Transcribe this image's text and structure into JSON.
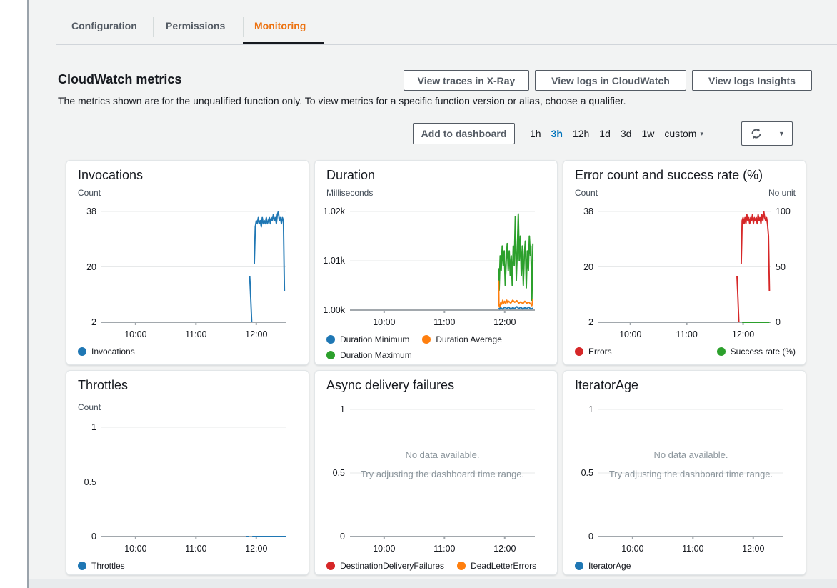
{
  "tabs": [
    {
      "label": "Configuration",
      "active": false
    },
    {
      "label": "Permissions",
      "active": false
    },
    {
      "label": "Monitoring",
      "active": true
    }
  ],
  "header": {
    "title": "CloudWatch metrics",
    "description": "The metrics shown are for the unqualified function only. To view metrics for a specific function version or alias, choose a qualifier.",
    "actions": [
      "View traces in X-Ray",
      "View logs in CloudWatch",
      "View logs Insights"
    ]
  },
  "toolbar": {
    "add_to_dashboard": "Add to dashboard",
    "ranges": [
      "1h",
      "3h",
      "12h",
      "1d",
      "3d",
      "1w",
      "custom"
    ],
    "active_range": "3h"
  },
  "colors": {
    "accent": "#ec7211",
    "link": "#0073bb",
    "series_blue": "#1f77b4",
    "series_orange": "#ff7f0e",
    "series_green": "#2ca02c",
    "series_red": "#d62728"
  },
  "chart_data": [
    {
      "id": "invocations",
      "type": "line",
      "title": "Invocations",
      "unit": "Count",
      "x_domain": [
        566,
        750
      ],
      "x_ticks": [
        {
          "v": 600,
          "label": "10:00"
        },
        {
          "v": 660,
          "label": "11:00"
        },
        {
          "v": 720,
          "label": "12:00"
        }
      ],
      "y_domain": [
        2,
        38
      ],
      "y_ticks": [
        {
          "v": 38,
          "label": "38"
        },
        {
          "v": 20,
          "label": "20"
        },
        {
          "v": 2,
          "label": "2"
        }
      ],
      "series": [
        {
          "name": "Invocations",
          "color": "#1f77b4",
          "segments": [
            [
              [
                713.5,
                17
              ],
              [
                714.5,
                10
              ],
              [
                715.5,
                2
              ]
            ],
            [
              [
                718,
                21
              ],
              [
                718.5,
                27
              ],
              [
                719,
                33
              ],
              [
                720,
                35
              ],
              [
                721,
                34
              ],
              [
                722,
                36
              ],
              [
                723,
                34
              ],
              [
                724,
                35
              ],
              [
                725,
                33
              ],
              [
                726,
                36
              ],
              [
                727,
                34
              ],
              [
                728,
                35
              ],
              [
                729,
                34
              ],
              [
                730,
                36
              ],
              [
                731,
                34
              ],
              [
                732,
                35
              ],
              [
                733,
                36
              ],
              [
                734,
                34
              ],
              [
                735,
                36
              ],
              [
                736,
                35
              ],
              [
                737,
                37
              ],
              [
                738,
                35
              ],
              [
                739,
                36
              ],
              [
                740,
                34
              ],
              [
                741,
                37
              ],
              [
                742,
                38
              ],
              [
                743,
                35
              ],
              [
                744,
                36
              ],
              [
                745,
                34
              ],
              [
                746,
                36
              ],
              [
                747,
                35
              ],
              [
                748,
                12
              ]
            ]
          ]
        }
      ],
      "legend": [
        {
          "label": "Invocations",
          "color": "#1f77b4",
          "row": 0
        }
      ]
    },
    {
      "id": "duration",
      "type": "line",
      "title": "Duration",
      "unit": "Milliseconds",
      "x_domain": [
        566,
        750
      ],
      "x_ticks": [
        {
          "v": 600,
          "label": "10:00"
        },
        {
          "v": 660,
          "label": "11:00"
        },
        {
          "v": 720,
          "label": "12:00"
        }
      ],
      "y_domain": [
        1000,
        1020
      ],
      "y_ticks": [
        {
          "v": 1020,
          "label": "1.02k"
        },
        {
          "v": 1010,
          "label": "1.01k"
        },
        {
          "v": 1000,
          "label": "1.00k"
        }
      ],
      "series": [
        {
          "name": "Duration Maximum",
          "color": "#2ca02c",
          "segments": [
            [
              [
                714,
                1008.5
              ],
              [
                714.5,
                1004
              ],
              [
                715.5,
                1011
              ],
              [
                716.5,
                1008
              ],
              [
                717.5,
                1013
              ],
              [
                718.5,
                1009
              ],
              [
                719.5,
                1012
              ],
              [
                720.5,
                1005
              ],
              [
                721.5,
                1010
              ],
              [
                722.5,
                1013.5
              ],
              [
                723.5,
                1008
              ],
              [
                724.5,
                1012
              ],
              [
                725.5,
                1007
              ],
              [
                726.5,
                1011
              ],
              [
                727.5,
                1005
              ],
              [
                728.5,
                1013
              ],
              [
                729.5,
                1009
              ],
              [
                730.5,
                1019
              ],
              [
                731.5,
                1006
              ],
              [
                732.5,
                1012
              ],
              [
                733.5,
                1019.5
              ],
              [
                734.5,
                1010
              ],
              [
                735.5,
                1015
              ],
              [
                736.5,
                1007
              ],
              [
                737.5,
                1013
              ],
              [
                738.5,
                1005
              ],
              [
                739.5,
                1011
              ],
              [
                740.5,
                1014
              ],
              [
                741.5,
                1004.5
              ],
              [
                742.5,
                1012
              ],
              [
                743.5,
                1008
              ],
              [
                744.5,
                1015
              ],
              [
                745.5,
                1011
              ],
              [
                746,
                1013
              ],
              [
                747,
                1002
              ],
              [
                748,
                1013.5
              ]
            ]
          ]
        },
        {
          "name": "Duration Average",
          "color": "#ff7f0e",
          "segments": [
            [
              [
                714,
                1006
              ],
              [
                714.3,
                1001
              ],
              [
                715,
                1000.6
              ],
              [
                716,
                1001.5
              ],
              [
                717,
                1001.2
              ],
              [
                718,
                1002
              ],
              [
                719,
                1001.4
              ],
              [
                720,
                1001.8
              ],
              [
                721,
                1001.3
              ],
              [
                722,
                1002
              ],
              [
                723,
                1001.5
              ],
              [
                724,
                1001.8
              ],
              [
                726,
                1001.4
              ],
              [
                728,
                1002
              ],
              [
                730,
                1001.6
              ],
              [
                732,
                1001.9
              ],
              [
                734,
                1001.4
              ],
              [
                736,
                1001.7
              ],
              [
                738,
                1001.3
              ],
              [
                740,
                1001.8
              ],
              [
                742,
                1001.4
              ],
              [
                744,
                1001.6
              ],
              [
                746,
                1001.2
              ],
              [
                747,
                1000.9
              ],
              [
                748,
                1002.3
              ]
            ]
          ]
        },
        {
          "name": "Duration Minimum",
          "color": "#1f77b4",
          "segments": [
            [
              [
                714,
                1000.4
              ],
              [
                715,
                1000.2
              ],
              [
                716,
                1000.5
              ],
              [
                718,
                1000.2
              ],
              [
                720,
                1000.6
              ],
              [
                722,
                1000.3
              ],
              [
                724,
                1000.6
              ],
              [
                726,
                1000.2
              ],
              [
                728,
                1000.5
              ],
              [
                730,
                1000.3
              ],
              [
                732,
                1000.7
              ],
              [
                734,
                1000.3
              ],
              [
                736,
                1000.6
              ],
              [
                738,
                1000.2
              ],
              [
                740,
                1000.5
              ],
              [
                742,
                1000.3
              ],
              [
                744,
                1000.6
              ],
              [
                746,
                1000.2
              ],
              [
                748,
                1000.4
              ]
            ]
          ]
        }
      ],
      "legend": [
        {
          "label": "Duration Minimum",
          "color": "#1f77b4",
          "row": 0
        },
        {
          "label": "Duration Average",
          "color": "#ff7f0e",
          "row": 0
        },
        {
          "label": "Duration Maximum",
          "color": "#2ca02c",
          "row": 1
        }
      ]
    },
    {
      "id": "errors",
      "type": "line",
      "title": "Error count and success rate (%)",
      "unit": "Count",
      "unit_right": "No unit",
      "x_domain": [
        566,
        750
      ],
      "x_ticks": [
        {
          "v": 600,
          "label": "10:00"
        },
        {
          "v": 660,
          "label": "11:00"
        },
        {
          "v": 720,
          "label": "12:00"
        }
      ],
      "y_domain": [
        2,
        38
      ],
      "y_ticks": [
        {
          "v": 38,
          "label": "38"
        },
        {
          "v": 20,
          "label": "20"
        },
        {
          "v": 2,
          "label": "2"
        }
      ],
      "y_right_domain": [
        0,
        100
      ],
      "y_right_ticks": [
        {
          "v": 100,
          "label": "100"
        },
        {
          "v": 50,
          "label": "50"
        },
        {
          "v": 0,
          "label": "0"
        }
      ],
      "series": [
        {
          "name": "Errors",
          "color": "#d62728",
          "segments": [
            [
              [
                713.5,
                17
              ],
              [
                714.5,
                10
              ],
              [
                715.5,
                2
              ]
            ],
            [
              [
                718,
                21
              ],
              [
                718.5,
                28
              ],
              [
                719,
                35
              ],
              [
                720,
                36
              ],
              [
                721,
                34
              ],
              [
                722,
                36
              ],
              [
                723,
                34
              ],
              [
                724,
                37
              ],
              [
                725,
                35
              ],
              [
                726,
                36
              ],
              [
                727,
                34
              ],
              [
                728,
                36
              ],
              [
                729,
                35
              ],
              [
                730,
                37
              ],
              [
                731,
                34
              ],
              [
                732,
                36
              ],
              [
                733,
                35
              ],
              [
                734,
                36
              ],
              [
                735,
                34
              ],
              [
                736,
                37
              ],
              [
                737,
                35
              ],
              [
                738,
                36
              ],
              [
                739,
                34
              ],
              [
                740,
                37
              ],
              [
                741,
                35
              ],
              [
                742,
                38
              ],
              [
                743,
                36
              ],
              [
                744,
                35
              ],
              [
                745,
                36
              ],
              [
                746,
                34
              ],
              [
                747,
                30
              ],
              [
                748,
                12
              ]
            ]
          ]
        },
        {
          "name": "Success rate (%)",
          "color": "#2ca02c",
          "axis": "right",
          "segments": [
            [
              [
                719,
                0
              ],
              [
                748,
                0
              ]
            ]
          ]
        }
      ],
      "legend": [
        {
          "label": "Errors",
          "color": "#d62728",
          "row": 0
        },
        {
          "label": "Success rate (%)",
          "color": "#2ca02c",
          "row": 0
        }
      ],
      "legend_spread": true
    },
    {
      "id": "throttles",
      "type": "line",
      "title": "Throttles",
      "unit": "Count",
      "x_domain": [
        566,
        750
      ],
      "x_ticks": [
        {
          "v": 600,
          "label": "10:00"
        },
        {
          "v": 660,
          "label": "11:00"
        },
        {
          "v": 720,
          "label": "12:00"
        }
      ],
      "y_domain": [
        0,
        1
      ],
      "y_ticks": [
        {
          "v": 1,
          "label": "1"
        },
        {
          "v": 0.5,
          "label": "0.5"
        },
        {
          "v": 0,
          "label": "0"
        }
      ],
      "series": [
        {
          "name": "Throttles",
          "color": "#1f77b4",
          "segments": [
            [
              [
                710,
                0
              ],
              [
                713,
                0
              ]
            ],
            [
              [
                716,
                0
              ],
              [
                750,
                0
              ]
            ]
          ]
        }
      ],
      "legend": [
        {
          "label": "Throttles",
          "color": "#1f77b4",
          "row": 0
        }
      ]
    },
    {
      "id": "async",
      "type": "line",
      "title": "Async delivery failures",
      "x_domain": [
        566,
        750
      ],
      "x_ticks": [
        {
          "v": 600,
          "label": "10:00"
        },
        {
          "v": 660,
          "label": "11:00"
        },
        {
          "v": 720,
          "label": "12:00"
        }
      ],
      "y_domain": [
        0,
        1
      ],
      "y_ticks": [
        {
          "v": 1,
          "label": "1"
        },
        {
          "v": 0.5,
          "label": "0.5"
        },
        {
          "v": 0,
          "label": "0"
        }
      ],
      "series": [],
      "no_data": [
        "No data available.",
        "Try adjusting the dashboard time range."
      ],
      "legend": [
        {
          "label": "DestinationDeliveryFailures",
          "color": "#d62728",
          "row": 0
        },
        {
          "label": "DeadLetterErrors",
          "color": "#ff7f0e",
          "row": 0
        }
      ]
    },
    {
      "id": "iterator",
      "type": "line",
      "title": "IteratorAge",
      "x_domain": [
        566,
        750
      ],
      "x_ticks": [
        {
          "v": 600,
          "label": "10:00"
        },
        {
          "v": 660,
          "label": "11:00"
        },
        {
          "v": 720,
          "label": "12:00"
        }
      ],
      "y_domain": [
        0,
        1
      ],
      "y_ticks": [
        {
          "v": 1,
          "label": "1"
        },
        {
          "v": 0.5,
          "label": "0.5"
        },
        {
          "v": 0,
          "label": "0"
        }
      ],
      "series": [],
      "no_data": [
        "No data available.",
        "Try adjusting the dashboard time range."
      ],
      "legend": [
        {
          "label": "IteratorAge",
          "color": "#1f77b4",
          "row": 0
        }
      ]
    }
  ]
}
